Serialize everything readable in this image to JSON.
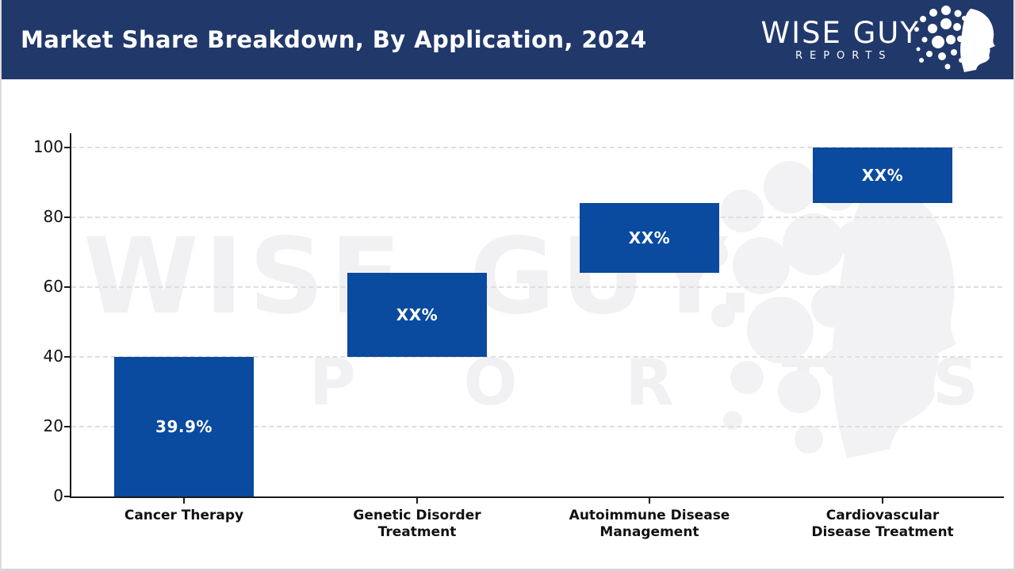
{
  "header": {
    "title": "Market Share Breakdown, By Application, 2024",
    "logo": {
      "brand_top": "WISE GUY",
      "brand_bottom": "REPORTS"
    }
  },
  "watermark": {
    "line1": "WISE GUY.",
    "line2": "P O R T S"
  },
  "chart_data": {
    "type": "bar",
    "subtype": "waterfall (stacked percentage segments)",
    "title": "Market Share Breakdown, By Application, 2024",
    "categories": [
      "Cancer Therapy",
      "Genetic Disorder Treatment",
      "Autoimmune Disease Management",
      "Cardiovascular Disease Treatment"
    ],
    "categories_lines": [
      [
        "Cancer Therapy"
      ],
      [
        "Genetic Disorder",
        "Treatment"
      ],
      [
        "Autoimmune Disease",
        "Management"
      ],
      [
        "Cardiovascular",
        "Disease Treatment"
      ]
    ],
    "segments": [
      {
        "category": "Cancer Therapy",
        "start": 0,
        "end": 39.9,
        "label": "39.9%"
      },
      {
        "category": "Genetic Disorder Treatment",
        "start": 39.9,
        "end": 64.2,
        "label": "XX%"
      },
      {
        "category": "Autoimmune Disease Management",
        "start": 64.2,
        "end": 84.2,
        "label": "XX%"
      },
      {
        "category": "Cardiovascular Disease Treatment",
        "start": 84.2,
        "end": 100,
        "label": "XX%"
      }
    ],
    "yticks": [
      0,
      20,
      40,
      60,
      80,
      100
    ],
    "ylim": [
      0,
      105
    ],
    "grid": {
      "horizontal": true,
      "style": "dashed"
    },
    "legend": "none",
    "colors": {
      "bar": "#0a4a9f",
      "bar_label": "#ffffff",
      "header_bg": "#21386b",
      "axis": "#1a1a1a",
      "gridline": "#dedede",
      "watermark": "#f1f1f4"
    }
  }
}
